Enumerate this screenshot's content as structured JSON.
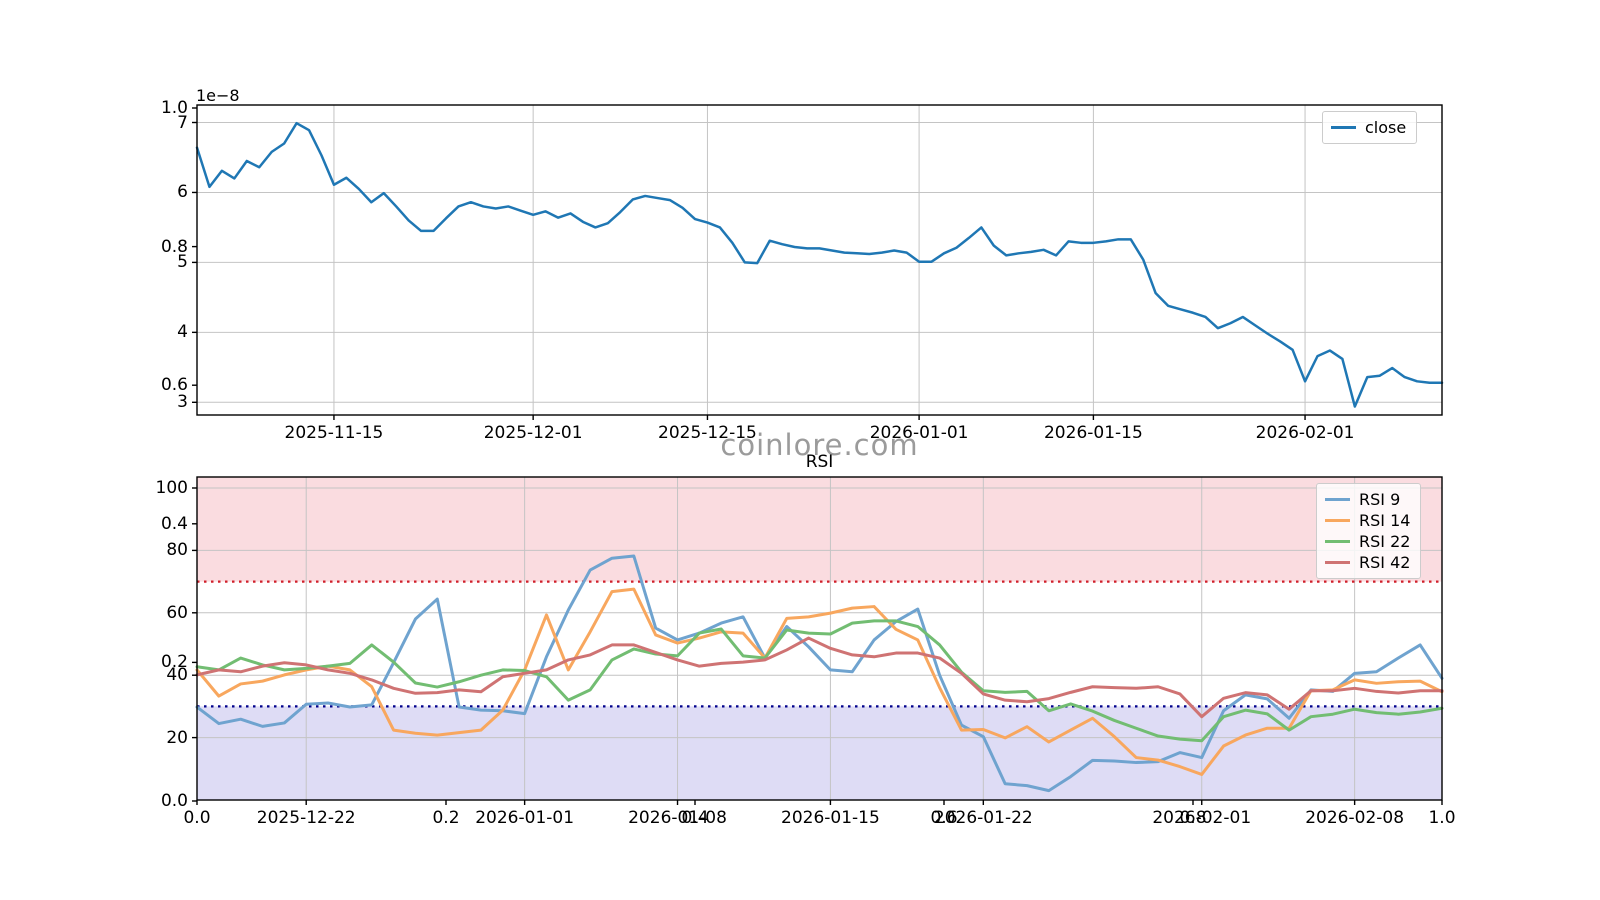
{
  "watermark": {
    "text": "coinlore.com",
    "color": "#9b9b9b"
  },
  "overlay_axis": {
    "x_tick_labels": [
      "0.0",
      "0.2",
      "0.4",
      "0.6",
      "0.8",
      "1.0"
    ],
    "y_tick_labels": [
      "0.0",
      "0.2",
      "0.4",
      "0.6",
      "0.8",
      "1.0"
    ]
  },
  "chart_data": [
    {
      "type": "line",
      "title": "",
      "ylabel": "",
      "xlabel": "",
      "y_offset_label": "1e−8",
      "grid": true,
      "legend_position": "upper right",
      "ylim": [
        2.82,
        7.25
      ],
      "y_ticks": [
        7,
        6,
        5,
        4,
        3
      ],
      "x_tick_labels": [
        "2025-11-15",
        "2025-12-01",
        "2025-12-15",
        "2026-01-01",
        "2026-01-15",
        "2026-02-01"
      ],
      "dates": [
        "2025-11-04",
        "2025-11-05",
        "2025-11-06",
        "2025-11-07",
        "2025-11-08",
        "2025-11-09",
        "2025-11-10",
        "2025-11-11",
        "2025-11-12",
        "2025-11-13",
        "2025-11-14",
        "2025-11-15",
        "2025-11-16",
        "2025-11-17",
        "2025-11-18",
        "2025-11-19",
        "2025-11-20",
        "2025-11-21",
        "2025-11-22",
        "2025-11-23",
        "2025-11-24",
        "2025-11-25",
        "2025-11-26",
        "2025-11-27",
        "2025-11-28",
        "2025-11-29",
        "2025-11-30",
        "2025-12-01",
        "2025-12-02",
        "2025-12-03",
        "2025-12-04",
        "2025-12-05",
        "2025-12-06",
        "2025-12-07",
        "2025-12-08",
        "2025-12-09",
        "2025-12-10",
        "2025-12-11",
        "2025-12-12",
        "2025-12-13",
        "2025-12-14",
        "2025-12-15",
        "2025-12-16",
        "2025-12-17",
        "2025-12-18",
        "2025-12-19",
        "2025-12-20",
        "2025-12-21",
        "2025-12-22",
        "2025-12-23",
        "2025-12-24",
        "2025-12-25",
        "2025-12-26",
        "2025-12-27",
        "2025-12-28",
        "2025-12-29",
        "2025-12-30",
        "2025-12-31",
        "2026-01-01",
        "2026-01-02",
        "2026-01-03",
        "2026-01-04",
        "2026-01-05",
        "2026-01-06",
        "2026-01-07",
        "2026-01-08",
        "2026-01-09",
        "2026-01-10",
        "2026-01-11",
        "2026-01-12",
        "2026-01-13",
        "2026-01-14",
        "2026-01-15",
        "2026-01-16",
        "2026-01-17",
        "2026-01-18",
        "2026-01-19",
        "2026-01-20",
        "2026-01-21",
        "2026-01-22",
        "2026-01-23",
        "2026-01-24",
        "2026-01-25",
        "2026-01-26",
        "2026-01-27",
        "2026-01-28",
        "2026-01-29",
        "2026-01-30",
        "2026-01-31",
        "2026-02-01",
        "2026-02-02",
        "2026-02-03",
        "2026-02-04",
        "2026-02-05",
        "2026-02-06",
        "2026-02-07",
        "2026-02-08",
        "2026-02-09",
        "2026-02-10",
        "2026-02-11",
        "2026-02-12"
      ],
      "series": [
        {
          "name": "close",
          "color": "#1f77b4",
          "width": 2.5,
          "unit_scale": "1e-8",
          "values": [
            6.64,
            6.08,
            6.31,
            6.2,
            6.45,
            6.36,
            6.58,
            6.7,
            6.99,
            6.89,
            6.53,
            6.11,
            6.21,
            6.05,
            5.86,
            5.99,
            5.8,
            5.6,
            5.45,
            5.45,
            5.63,
            5.8,
            5.86,
            5.8,
            5.77,
            5.8,
            5.74,
            5.68,
            5.73,
            5.64,
            5.7,
            5.58,
            5.5,
            5.56,
            5.72,
            5.9,
            5.95,
            5.92,
            5.89,
            5.78,
            5.62,
            5.57,
            5.5,
            5.28,
            5.0,
            4.99,
            5.31,
            5.26,
            5.22,
            5.2,
            5.2,
            5.17,
            5.14,
            5.13,
            5.12,
            5.14,
            5.17,
            5.14,
            5.01,
            5.01,
            5.13,
            5.21,
            5.35,
            5.5,
            5.24,
            5.1,
            5.13,
            5.15,
            5.18,
            5.1,
            5.3,
            5.28,
            5.28,
            5.3,
            5.33,
            5.33,
            5.04,
            4.56,
            4.38,
            4.33,
            4.28,
            4.22,
            4.06,
            4.13,
            4.22,
            4.1,
            3.98,
            3.87,
            3.75,
            3.3,
            3.66,
            3.74,
            3.62,
            2.94,
            3.36,
            3.38,
            3.49,
            3.36,
            3.3,
            3.28,
            3.28
          ]
        }
      ]
    },
    {
      "type": "line",
      "title": "RSI",
      "grid": true,
      "legend_position": "upper right",
      "ylim": [
        0,
        103.5
      ],
      "y_ticks": [
        100,
        80,
        60,
        40,
        20
      ],
      "x_tick_labels": [
        "2025-12-22",
        "2026-01-01",
        "2026-01-08",
        "2026-01-15",
        "2026-01-22",
        "2026-02-01",
        "2026-02-08"
      ],
      "bands": [
        {
          "from": 70,
          "to": 103.5,
          "color": "#fadce0"
        },
        {
          "from": 0,
          "to": 30,
          "color": "#dedcf5"
        }
      ],
      "reference_lines": [
        {
          "value": 70,
          "color": "#d01f2a",
          "style": "dotted"
        },
        {
          "value": 30,
          "color": "#00008b",
          "style": "dotted"
        }
      ],
      "dates": [
        "2025-12-17",
        "2025-12-18",
        "2025-12-19",
        "2025-12-20",
        "2025-12-21",
        "2025-12-22",
        "2025-12-23",
        "2025-12-24",
        "2025-12-25",
        "2025-12-26",
        "2025-12-27",
        "2025-12-28",
        "2025-12-29",
        "2025-12-30",
        "2025-12-31",
        "2026-01-01",
        "2026-01-02",
        "2026-01-03",
        "2026-01-04",
        "2026-01-05",
        "2026-01-06",
        "2026-01-07",
        "2026-01-08",
        "2026-01-09",
        "2026-01-10",
        "2026-01-11",
        "2026-01-12",
        "2026-01-13",
        "2026-01-14",
        "2026-01-15",
        "2026-01-16",
        "2026-01-17",
        "2026-01-18",
        "2026-01-19",
        "2026-01-20",
        "2026-01-21",
        "2026-01-22",
        "2026-01-23",
        "2026-01-24",
        "2026-01-25",
        "2026-01-26",
        "2026-01-27",
        "2026-01-28",
        "2026-01-29",
        "2026-01-30",
        "2026-01-31",
        "2026-02-01",
        "2026-02-02",
        "2026-02-03",
        "2026-02-04",
        "2026-02-05",
        "2026-02-06",
        "2026-02-07",
        "2026-02-08",
        "2026-02-09",
        "2026-02-10",
        "2026-02-11",
        "2026-02-12"
      ],
      "series": [
        {
          "name": "RSI 9",
          "color": "#6fa3cf",
          "width": 3,
          "values": [
            29.8,
            24.5,
            25.9,
            23.6,
            24.7,
            30.7,
            31.1,
            29.8,
            30.5,
            44.0,
            58.0,
            64.4,
            29.8,
            28.8,
            28.6,
            27.7,
            45.9,
            60.9,
            73.7,
            77.5,
            78.2,
            55.1,
            51.3,
            53.5,
            56.7,
            58.7,
            45.5,
            55.6,
            49.1,
            41.7,
            41.1,
            51.3,
            57.2,
            61.2,
            40.0,
            24.0,
            20.3,
            5.2,
            4.6,
            3.0,
            7.5,
            12.7,
            12.5,
            12.0,
            12.3,
            15.2,
            13.6,
            28.6,
            33.7,
            32.4,
            26.2,
            35.3,
            34.8,
            40.6,
            41.1,
            45.5,
            49.7,
            39.0
          ]
        },
        {
          "name": "RSI 14",
          "color": "#f8a75e",
          "width": 3,
          "values": [
            41.7,
            33.3,
            37.2,
            38.1,
            40.1,
            41.7,
            42.9,
            41.7,
            36.3,
            22.4,
            21.4,
            20.8,
            21.6,
            22.4,
            28.8,
            41.7,
            59.3,
            41.7,
            53.9,
            66.8,
            67.6,
            52.9,
            50.3,
            51.9,
            53.9,
            53.5,
            45.5,
            58.2,
            58.7,
            59.9,
            61.5,
            62.0,
            54.7,
            51.3,
            36.0,
            22.4,
            22.6,
            19.9,
            23.5,
            18.6,
            22.4,
            26.2,
            20.3,
            13.6,
            12.8,
            10.7,
            8.2,
            17.3,
            20.8,
            23.0,
            23.0,
            35.0,
            35.3,
            38.5,
            37.4,
            37.9,
            38.1,
            34.7
          ]
        },
        {
          "name": "RSI 22",
          "color": "#72bd72",
          "width": 3,
          "values": [
            42.7,
            41.7,
            45.5,
            43.3,
            41.7,
            42.2,
            42.9,
            43.8,
            49.7,
            44.2,
            37.5,
            36.2,
            37.9,
            40.0,
            41.7,
            41.5,
            39.5,
            32.0,
            35.3,
            44.9,
            48.4,
            46.8,
            46.2,
            53.5,
            54.8,
            46.2,
            45.5,
            54.5,
            53.5,
            53.2,
            56.7,
            57.4,
            57.4,
            55.6,
            49.7,
            41.0,
            35.0,
            34.5,
            34.8,
            28.6,
            30.8,
            28.5,
            25.5,
            23.0,
            20.5,
            19.5,
            19.0,
            26.7,
            28.8,
            27.6,
            22.4,
            26.7,
            27.5,
            29.1,
            28.0,
            27.5,
            28.2,
            29.4
          ]
        },
        {
          "name": "RSI 42",
          "color": "#cf7373",
          "width": 3,
          "values": [
            40.1,
            41.7,
            41.1,
            42.9,
            44.0,
            43.3,
            41.7,
            40.6,
            38.5,
            35.8,
            34.2,
            34.4,
            35.3,
            34.7,
            39.5,
            40.6,
            41.7,
            44.9,
            46.5,
            49.7,
            49.7,
            47.3,
            44.9,
            42.9,
            43.8,
            44.2,
            44.9,
            48.1,
            51.9,
            48.6,
            46.5,
            45.9,
            47.1,
            47.1,
            45.5,
            40.6,
            34.0,
            32.0,
            31.5,
            32.5,
            34.5,
            36.3,
            36.0,
            35.8,
            36.3,
            34.0,
            26.7,
            32.6,
            34.4,
            33.7,
            29.1,
            35.0,
            35.0,
            35.8,
            34.8,
            34.3,
            35.0,
            35.0
          ]
        }
      ]
    }
  ]
}
